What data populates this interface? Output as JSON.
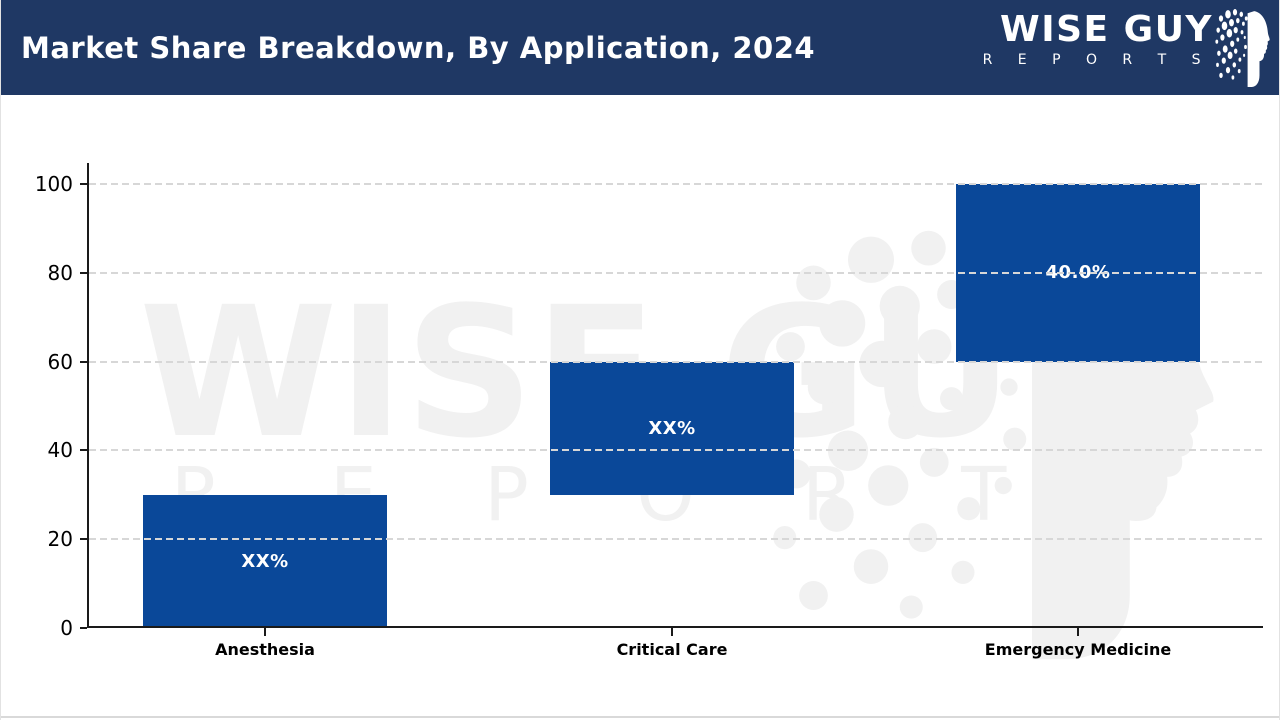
{
  "header": {
    "title": "Market Share Breakdown, By Application, 2024",
    "logo": {
      "line1": "WISE GUY",
      "line2": "R E P O R T S"
    }
  },
  "watermark": {
    "line1": "WISE GUY",
    "line2": "R E P O R T S"
  },
  "colors": {
    "header_bg": "#1f3864",
    "bar": "#0a4899",
    "grid": "#d7d7d7",
    "axis": "#1a1a1a",
    "bar_label_text": "#ffffff",
    "watermark": "#f1f1f1"
  },
  "chart_data": {
    "type": "bar",
    "variant": "floating-waterfall",
    "title": "Market Share Breakdown, By Application, 2024",
    "categories": [
      "Anesthesia",
      "Critical Care",
      "Emergency Medicine"
    ],
    "segments": [
      {
        "category": "Anesthesia",
        "start": 0,
        "end": 30,
        "label": "XX%"
      },
      {
        "category": "Critical Care",
        "start": 30,
        "end": 60,
        "label": "XX%"
      },
      {
        "category": "Emergency Medicine",
        "start": 60,
        "end": 100,
        "label": "40.0%"
      }
    ],
    "xlabel": "",
    "ylabel": "",
    "ylim": [
      0,
      100
    ],
    "yticks": [
      0,
      20,
      40,
      60,
      80,
      100
    ],
    "grid": "horizontal-dashed",
    "legend": "none"
  }
}
